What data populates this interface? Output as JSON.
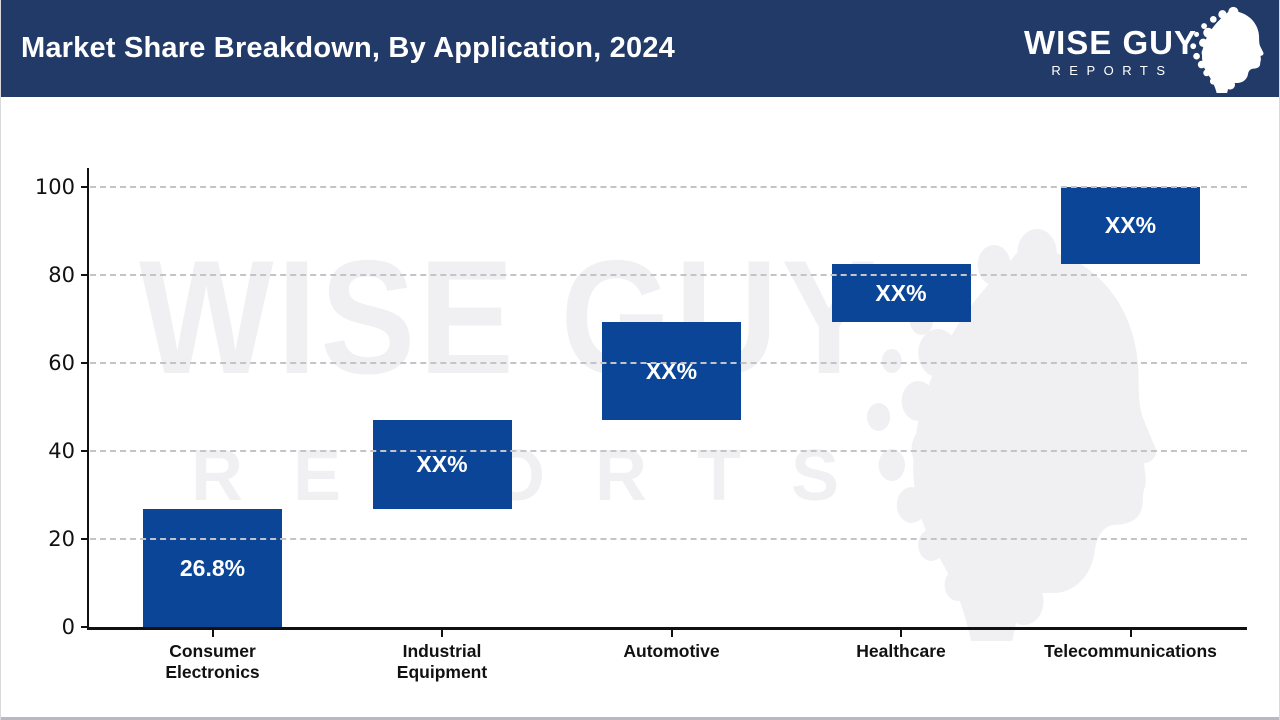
{
  "header": {
    "title": "Market Share Breakdown, By Application, 2024",
    "logo": {
      "wordmark": "WISE GUY",
      "subtitle": "REPORTS"
    }
  },
  "watermark": {
    "wordmark": "WISE GUY",
    "subtitle": "REPORTS"
  },
  "colors": {
    "header_bg": "#223a68",
    "bar": "#0b4598",
    "bar_label": "#ffffff",
    "grid": "#c4c4c6",
    "axis": "#111111",
    "watermark": "#f0f0f3"
  },
  "chart_data": {
    "type": "bar",
    "variant": "floating-waterfall",
    "title": "Market Share Breakdown, By Application, 2024",
    "categories": [
      "Consumer Electronics",
      "Industrial Equipment",
      "Automotive",
      "Healthcare",
      "Telecommunications"
    ],
    "category_label_lines": [
      [
        "Consumer",
        "Electronics"
      ],
      [
        "Industrial",
        "Equipment"
      ],
      [
        "Automotive"
      ],
      [
        "Healthcare"
      ],
      [
        "Telecommunications"
      ]
    ],
    "segments": [
      [
        0,
        26.8
      ],
      [
        26.8,
        47
      ],
      [
        47,
        69.3
      ],
      [
        69.3,
        82.5
      ],
      [
        82.5,
        100
      ]
    ],
    "bar_labels": [
      "26.8%",
      "XX%",
      "XX%",
      "XX%",
      "XX%"
    ],
    "ylim": [
      0,
      100
    ],
    "yticks": [
      0,
      20,
      40,
      60,
      80,
      100
    ],
    "grid": "horizontal-dashed",
    "legend": "none",
    "xlabel": "",
    "ylabel": ""
  }
}
